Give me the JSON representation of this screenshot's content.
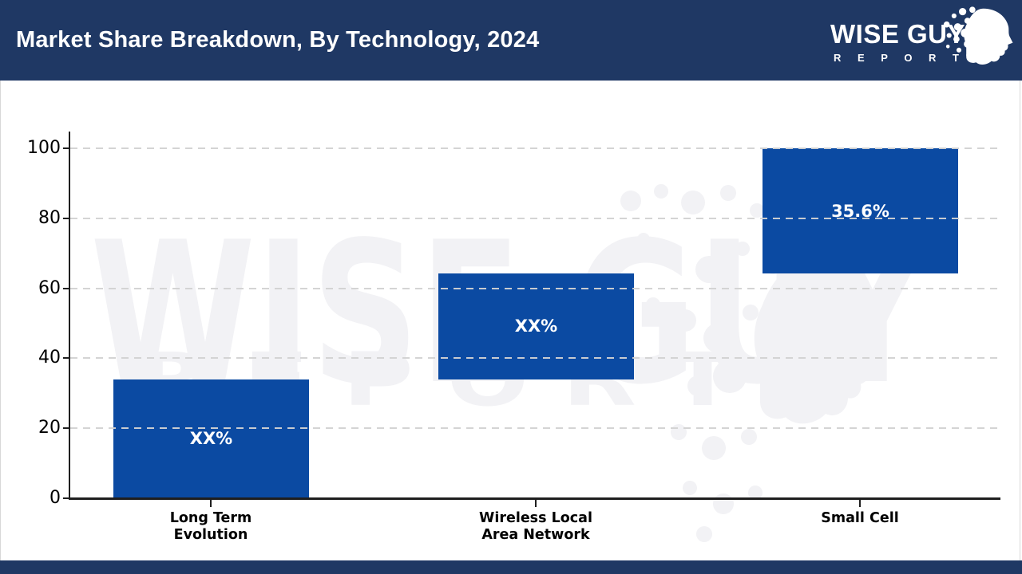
{
  "header": {
    "title": "Market Share Breakdown, By Technology, 2024",
    "logo": {
      "name_top": "WISE GUY",
      "name_bottom": "R E P O R T S",
      "mark": "dotted-head-profile"
    }
  },
  "watermark": {
    "text_top": "WISE GUY",
    "text_bottom": "R E P O R T S"
  },
  "chart_data": {
    "type": "bar",
    "subtype": "floating-waterfall-segments",
    "title": "Market Share Breakdown, By Technology, 2024",
    "categories": [
      {
        "label": "Long Term Evolution",
        "lines": [
          "Long Term",
          "Evolution"
        ]
      },
      {
        "label": "Wireless Local Area Network",
        "lines": [
          "Wireless Local",
          "Area Network"
        ]
      },
      {
        "label": "Small Cell",
        "lines": [
          "Small Cell"
        ]
      }
    ],
    "series": [
      {
        "name": "Market share (%)",
        "segments": [
          {
            "category": "Long Term Evolution",
            "start": 0,
            "end": 34,
            "label": "XX%"
          },
          {
            "category": "Wireless Local Area Network",
            "start": 34,
            "end": 64.3,
            "label": "XX%"
          },
          {
            "category": "Small Cell",
            "start": 64.3,
            "end": 99.9,
            "label": "35.6%"
          }
        ]
      }
    ],
    "xlabel": "",
    "ylabel": "",
    "ylim": [
      0,
      100
    ],
    "yticks": [
      0,
      20,
      40,
      60,
      80,
      100
    ],
    "grid": "horizontal-dashed-over-bars",
    "legend": "none"
  },
  "colors": {
    "header_bg": "#1f3864",
    "footer_bg": "#1f3864",
    "bar": "#0b4aa2",
    "gridline": "#d2d2d2",
    "axis": "#1f1f1f",
    "title_text": "#ffffff",
    "bar_label_text": "#ffffff",
    "tick_text": "#000000",
    "watermark": "#f2f2f5"
  }
}
